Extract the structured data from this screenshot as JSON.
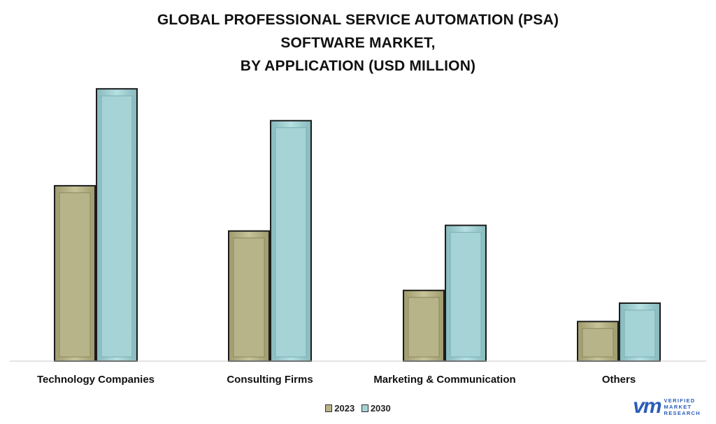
{
  "title_lines": [
    "GLOBAL PROFESSIONAL SERVICE AUTOMATION (PSA)",
    "SOFTWARE MARKET,",
    "BY APPLICATION (USD MILLION)"
  ],
  "legend": {
    "items": [
      {
        "label": "2023",
        "color": "#b8b48a"
      },
      {
        "label": "2030",
        "color": "#a6d3d6"
      }
    ]
  },
  "logo": {
    "mark": "vm",
    "lines": [
      "VERIFIED",
      "MARKET",
      "RESEARCH"
    ]
  },
  "chart_data": {
    "type": "bar",
    "categories": [
      "Technology Companies",
      "Consulting Firms",
      "Marketing & Communication",
      "Others"
    ],
    "series": [
      {
        "name": "2023",
        "color": "#b8b48a",
        "values": [
          248,
          184,
          100,
          56
        ]
      },
      {
        "name": "2030",
        "color": "#a6d3d6",
        "values": [
          385,
          340,
          192,
          82
        ]
      }
    ],
    "ylim": [
      0,
      400
    ],
    "grid": false,
    "legend_position": "bottom"
  }
}
